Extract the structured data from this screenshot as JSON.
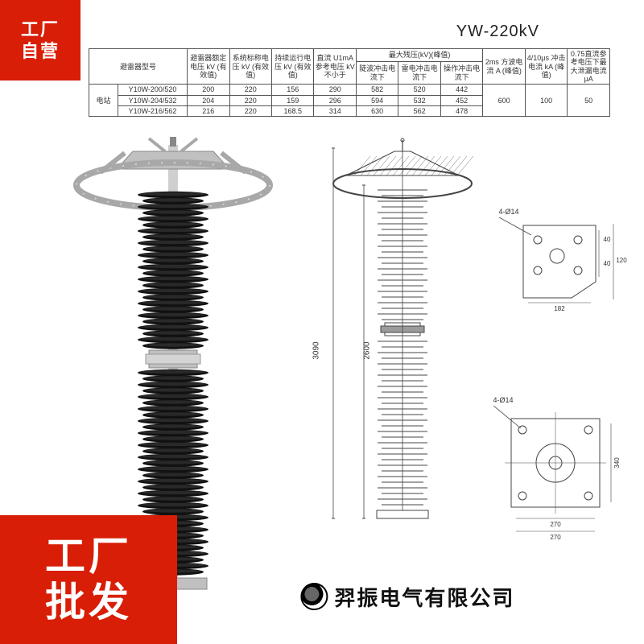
{
  "title": "YW-220kV",
  "badges": {
    "top_left_line1": "工厂",
    "top_left_line2": "自营",
    "bottom_left_line1": "工厂",
    "bottom_left_line2": "批发"
  },
  "company": "羿振电气有限公司",
  "table": {
    "group_header": "避雷器型号",
    "group_label": "电站",
    "headers": {
      "c1": "避雷器额定电压 kV (有效值)",
      "c2": "系统标称电压 kV (有效值)",
      "c3": "持续运行电压 kV (有效值)",
      "c4": "直流 U1mA 参考电压 kV 不小于",
      "c5_group": "最大残压(kV)(峰值)",
      "c5a": "陡波冲击电流下",
      "c5b": "雷电冲击电流下",
      "c5c": "操作冲击电流下",
      "c6": "2ms 方波电流 A (峰值)",
      "c7": "4/10μs 冲击电流 kA (峰值)",
      "c8": "0.75直流参考电压下最大泄漏电流 μA"
    },
    "rows": [
      {
        "model": "Y10W-200/520",
        "v1": "200",
        "v2": "220",
        "v3": "156",
        "v4": "290",
        "v5a": "582",
        "v5b": "520",
        "v5c": "442",
        "v6": "600",
        "v7": "100",
        "v8": "50"
      },
      {
        "model": "Y10W-204/532",
        "v1": "204",
        "v2": "220",
        "v3": "159",
        "v4": "296",
        "v5a": "594",
        "v5b": "532",
        "v5c": "452",
        "v6": "",
        "v7": "",
        "v8": ""
      },
      {
        "model": "Y10W-216/562",
        "v1": "216",
        "v2": "220",
        "v3": "168.5",
        "v4": "314",
        "v5a": "630",
        "v5b": "562",
        "v5c": "478",
        "v6": "",
        "v7": "",
        "v8": ""
      }
    ]
  },
  "drawing": {
    "overall_height": "3090",
    "insulator_height": "2600",
    "top_plate": {
      "hole_spec": "4-Ø14",
      "h1": "40",
      "h2": "40",
      "w": "182",
      "hmark": "120"
    },
    "base_plate": {
      "hole_spec": "4-Ø14",
      "w1": "270",
      "w2": "270",
      "h": "340"
    },
    "colors": {
      "line": "#444",
      "fill": "#9b9b9b"
    }
  },
  "photo": {
    "shed_count_upper": 26,
    "shed_count_lower": 34,
    "shed_color": "#111",
    "shed_highlight": "#555",
    "hardware_color": "#c0c0c0",
    "ring_stroke": "#a8a8a8",
    "rod_color": "#cfcfcf"
  }
}
